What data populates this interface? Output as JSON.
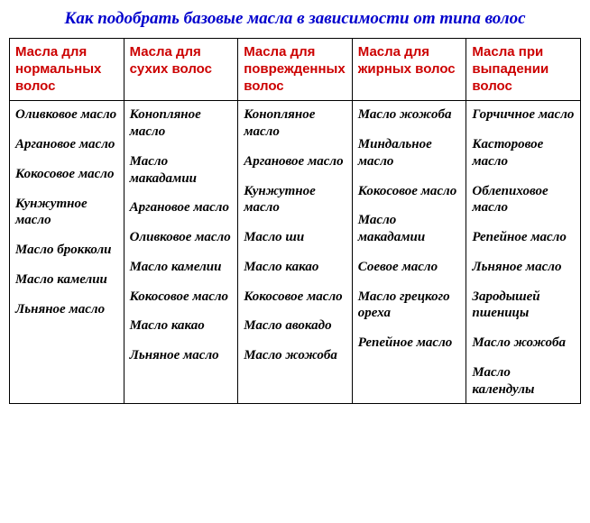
{
  "title": "Как подобрать базовые масла в зависимости от типа волос",
  "columns": [
    {
      "header": "Масла для нормальных волос",
      "items": [
        "Оливковое масло",
        "Аргановое масло",
        "Кокосовое масло",
        "Кунжутное масло",
        "Масло брокколи",
        "Масло камелии",
        "Льняное масло"
      ]
    },
    {
      "header": "Масла для сухих волос",
      "items": [
        "Конопляное масло",
        "Масло макадамии",
        "Аргановое масло",
        "Оливковое масло",
        "Масло камелии",
        "Кокосовое масло",
        "Масло какао",
        "Льняное масло"
      ]
    },
    {
      "header": "Масла для поврежденных волос",
      "items": [
        "Конопляное масло",
        "Аргановое масло",
        "Кунжутное масло",
        "Масло ши",
        "Масло какао",
        "Кокосовое масло",
        "Масло авокадо",
        "Масло жожоба"
      ]
    },
    {
      "header": "Масла для жирных волос",
      "items": [
        "Масло жожоба",
        "Миндальное масло",
        "Кокосовое масло",
        "Масло макадамии",
        "Соевое масло",
        "Масло грецкого ореха",
        "Репейное масло"
      ]
    },
    {
      "header": "Масла при выпадении волос",
      "items": [
        "Горчичное масло",
        "Касторовое масло",
        "Облепиховое масло",
        "Репейное масло",
        "Льняное масло",
        "Зародышей пшеницы",
        "Масло жожоба",
        "Масло календулы"
      ]
    }
  ],
  "style": {
    "title_color": "#0000cd",
    "header_color": "#cc0000",
    "border_color": "#000000",
    "background_color": "#ffffff",
    "title_fontsize": 19,
    "header_fontsize": 15,
    "cell_fontsize": 15
  }
}
